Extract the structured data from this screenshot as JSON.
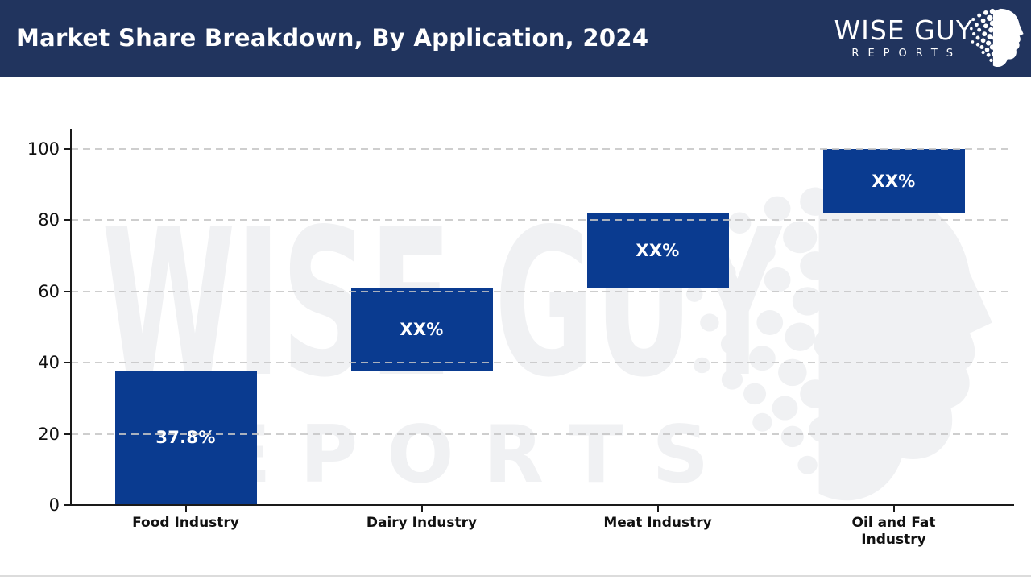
{
  "header": {
    "title": "Market Share Breakdown, By Application, 2024",
    "logo": {
      "line1": "WISE GUY",
      "line2": "REPORTS"
    }
  },
  "watermark": {
    "line1": "WISE GUY",
    "line2": "REPORTS"
  },
  "colors": {
    "header_bg": "#21345e",
    "bar": "#0a3b90",
    "bar_label": "#ffffff",
    "axis": "#1a1a1a",
    "gridline": "#c6c6c6",
    "watermark": "#f0f1f3",
    "title_text": "#ffffff",
    "tick_label": "#111111"
  },
  "chart_data": {
    "type": "bar",
    "subtype": "floating stacked market-share segments",
    "title": "Market Share Breakdown, By Application, 2024",
    "categories": [
      "Food Industry",
      "Dairy Industry",
      "Meat Industry",
      "Oil and Fat Industry"
    ],
    "series": [
      {
        "name": "Market share (%)",
        "ranges": [
          [
            0,
            37.8
          ],
          [
            37.8,
            61
          ],
          [
            61,
            82
          ],
          [
            82,
            100
          ]
        ],
        "labels": [
          "37.8%",
          "XX%",
          "XX%",
          "XX%"
        ]
      }
    ],
    "xlabel": "",
    "ylabel": "",
    "ylim": [
      0,
      105
    ],
    "yticks": [
      0,
      20,
      40,
      60,
      80,
      100
    ],
    "grid": "horizontal dashed",
    "legend": "none",
    "bar_color": "#0a3b90",
    "label_color": "#ffffff"
  }
}
